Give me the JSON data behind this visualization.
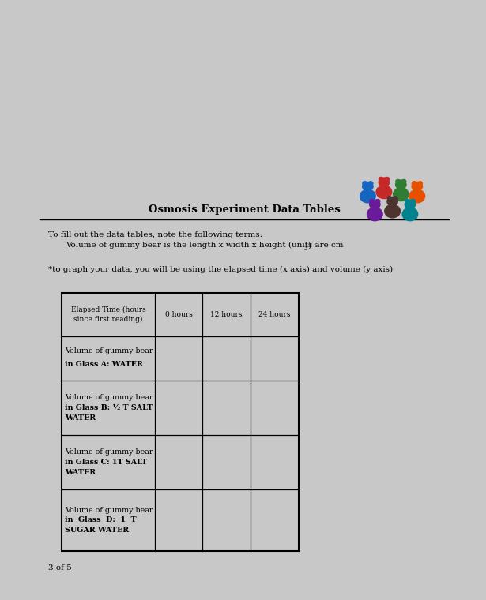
{
  "title": "Osmosis Experiment Data Tables",
  "note_line1": "To fill out the data tables, note the following terms:",
  "note_line2_pre": "Volume of gummy bear is the length x width x height (units are cm",
  "note_line2_post": ")",
  "superscript": "3",
  "graph_note": "*to graph your data, you will be using the elapsed time (x axis) and volume (y axis)",
  "col_header_0a": "Elapsed Time (hours",
  "col_header_0b": "since first reading)",
  "col_header_1": "0 hours",
  "col_header_2": "12 hours",
  "col_header_3": "24 hours",
  "rows": [
    {
      "line1": "Volume of gummy bear",
      "line2": "in Glass A: WATER",
      "line2_bold": true,
      "line3": null
    },
    {
      "line1": "Volume of gummy bear",
      "line2": "in Glass B: ½ T SALT",
      "line2_bold": true,
      "line3": "WATER",
      "line3_bold": true
    },
    {
      "line1": "Volume of gummy bear",
      "line2": "in Glass C: 1T SALT",
      "line2_bold": true,
      "line3": "WATER",
      "line3_bold": true
    },
    {
      "line1": "Volume of gummy bear",
      "line2": "in  Glass  D:  1  T",
      "line2_bold": true,
      "line3": "SUGAR WATER",
      "line3_bold": true
    }
  ],
  "page_number": "3 of 5",
  "page_bg": "#c8c8c8",
  "paper_bg": "#ffffff",
  "bear_colors": [
    "#1565C0",
    "#C62828",
    "#2E7D32",
    "#E65100",
    "#6A1B9A",
    "#4E342E",
    "#00838F",
    "#558B2F"
  ]
}
